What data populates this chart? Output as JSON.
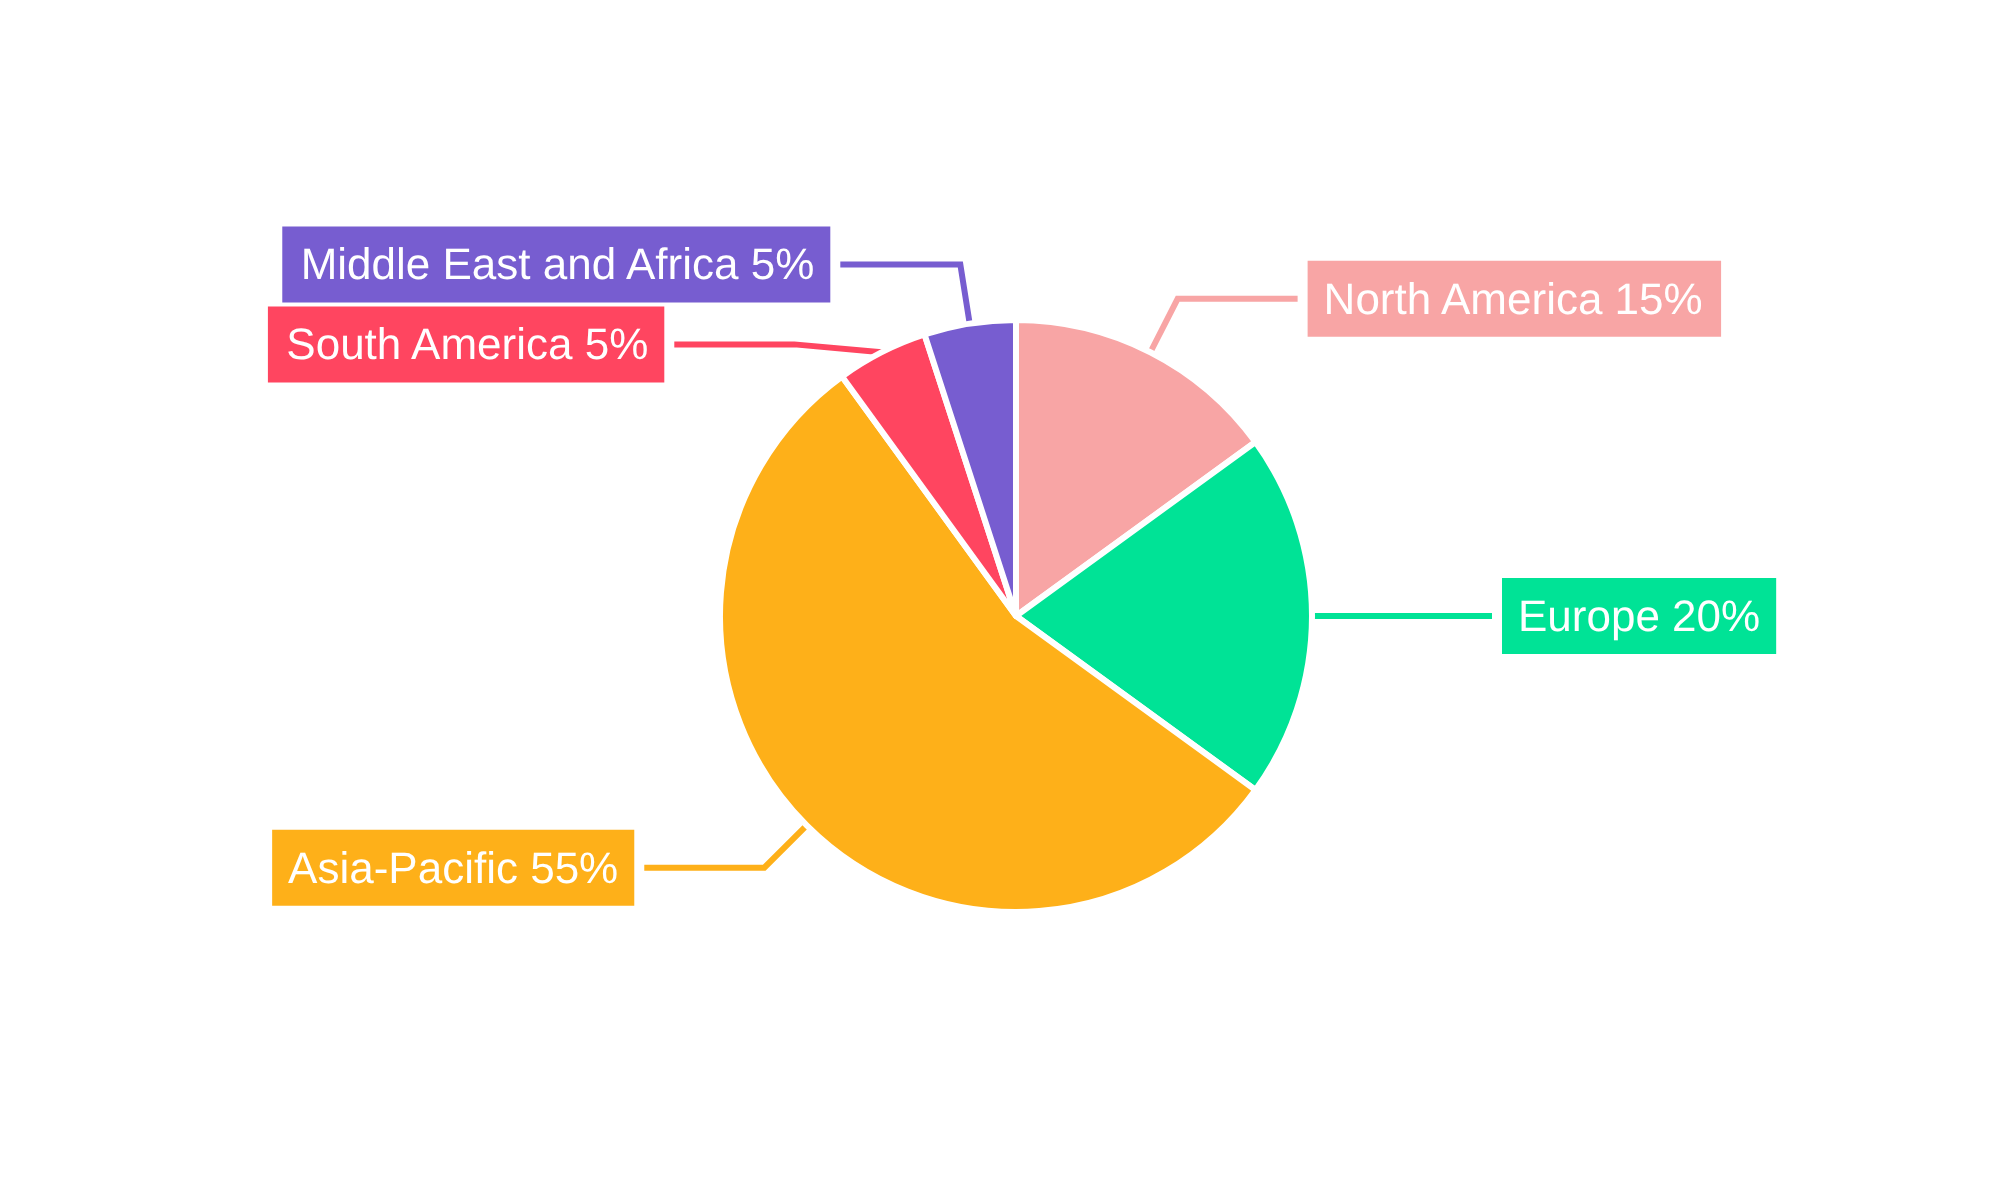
{
  "chart_data": {
    "type": "pie",
    "categories": [
      "North America",
      "Europe",
      "Asia-Pacific",
      "South America",
      "Middle East and Africa"
    ],
    "values": [
      15,
      20,
      55,
      5,
      5
    ],
    "value_labels": [
      "15%",
      "20%",
      "55%",
      "5%",
      "5%"
    ],
    "colors": [
      "#f8a5a5",
      "#00e396",
      "#feb019",
      "#ff4560",
      "#775dd0"
    ]
  }
}
